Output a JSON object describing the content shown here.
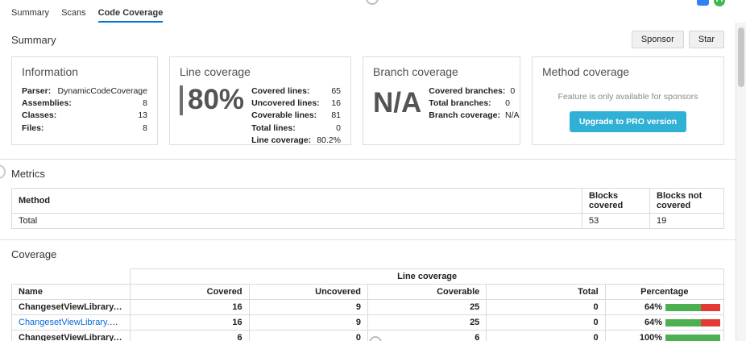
{
  "tabs": [
    {
      "label": "Summary"
    },
    {
      "label": "Scans"
    },
    {
      "label": "Code Coverage"
    }
  ],
  "summary": {
    "title": "Summary",
    "sponsor_label": "Sponsor",
    "star_label": "Star"
  },
  "cards": {
    "information": {
      "title": "Information",
      "rows": [
        {
          "label": "Parser:",
          "value": "DynamicCodeCoverage"
        },
        {
          "label": "Assemblies:",
          "value": "8"
        },
        {
          "label": "Classes:",
          "value": "13"
        },
        {
          "label": "Files:",
          "value": "8"
        }
      ]
    },
    "line_coverage": {
      "title": "Line coverage",
      "big_value": "80%",
      "rows": [
        {
          "label": "Covered lines:",
          "value": "65"
        },
        {
          "label": "Uncovered lines:",
          "value": "16"
        },
        {
          "label": "Coverable lines:",
          "value": "81"
        },
        {
          "label": "Total lines:",
          "value": "0"
        },
        {
          "label": "Line coverage:",
          "value": "80.2%"
        }
      ]
    },
    "branch_coverage": {
      "title": "Branch coverage",
      "big_value": "N/A",
      "rows": [
        {
          "label": "Covered branches:",
          "value": "0"
        },
        {
          "label": "Total branches:",
          "value": "0"
        },
        {
          "label": "Branch coverage:",
          "value": "N/A"
        }
      ]
    },
    "method_coverage": {
      "title": "Method coverage",
      "note": "Feature is only available for sponsors",
      "upgrade_label": "Upgrade to PRO version"
    }
  },
  "metrics": {
    "title": "Metrics",
    "columns": [
      "Method",
      "Blocks covered",
      "Blocks not covered"
    ],
    "rows": [
      [
        "Total",
        "53",
        "19"
      ]
    ]
  },
  "coverage": {
    "title": "Coverage",
    "group_header": "Line coverage",
    "columns": [
      "Name",
      "Covered",
      "Uncovered",
      "Coverable",
      "Total",
      "Percentage"
    ],
    "rows": [
      {
        "name": "ChangesetViewLibrary.dll",
        "covered": "16",
        "uncovered": "9",
        "coverable": "25",
        "total": "0",
        "percentage": "64%",
        "pct": 64,
        "is_link": false
      },
      {
        "name": "ChangesetViewLibrary.ChangesetLibrary",
        "covered": "16",
        "uncovered": "9",
        "coverable": "25",
        "total": "0",
        "percentage": "64%",
        "pct": 64,
        "is_link": true
      },
      {
        "name": "ChangesetViewLibrary.Tests.dll",
        "covered": "6",
        "uncovered": "0",
        "coverable": "6",
        "total": "0",
        "percentage": "100%",
        "pct": 100,
        "is_link": false
      }
    ]
  },
  "colors": {
    "accent_blue": "#0078d4",
    "link_blue": "#0969da",
    "upgrade_button_bg": "#31b0d5",
    "bar_green": "#4caf50",
    "bar_red": "#e53935",
    "chat_icon_blue": "#2f81f7",
    "reaction_icon_green": "#3fb950"
  }
}
